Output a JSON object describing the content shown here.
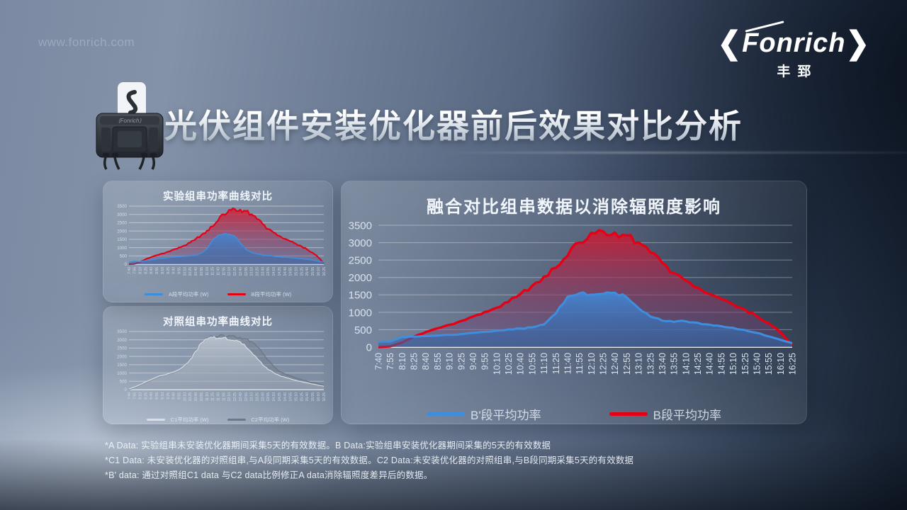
{
  "watermark": "www.fonrich.com",
  "logo": {
    "bracket_left": "❮",
    "brand": "Fonrich",
    "bracket_right": "❯",
    "cn": "丰郅"
  },
  "header": {
    "title": "光伏组件安装优化器前后效果对比分析"
  },
  "footnotes": [
    "*A Data: 实验组串未安装优化器期间采集5天的有效数据。B Data:实验组串安装优化器期间采集的5天的有效数据",
    "*C1 Data: 未安装优化器的对照组串,与A段同期采集5天的有效数据。C2 Data:未安装优化器的对照组串,与B段同期采集5天的有效数据",
    "*B' data: 通过对照组C1 data 与C2 data比例修正A data消除辐照度差异后的数据。"
  ],
  "chart_data": [
    {
      "id": "experiment",
      "type": "area",
      "title": "实验组串功率曲线对比",
      "categories": [
        "7:40",
        "7:55",
        "8:10",
        "8:25",
        "8:40",
        "8:55",
        "9:10",
        "9:25",
        "9:40",
        "9:55",
        "10:10",
        "10:25",
        "10:40",
        "10:55",
        "11:10",
        "11:25",
        "11:40",
        "11:55",
        "12:10",
        "12:25",
        "12:40",
        "12:55",
        "13:10",
        "13:25",
        "13:40",
        "13:55",
        "14:10",
        "14:25",
        "14:40",
        "14:55",
        "15:10",
        "15:25",
        "15:40",
        "15:55",
        "16:10",
        "16:25"
      ],
      "ylim": [
        0,
        3500
      ],
      "ytick_step": 500,
      "grid": true,
      "legend_position": "bottom",
      "x_label_rotation": -90,
      "series": [
        {
          "name": "A段平均功率 (W)",
          "color": "#3f8ede",
          "fill_top": "rgba(66,136,214,0.90)",
          "fill_bottom": "rgba(58,98,158,0.55)",
          "values": [
            110,
            180,
            160,
            210,
            260,
            310,
            355,
            395,
            430,
            455,
            480,
            510,
            550,
            660,
            920,
            1420,
            1760,
            1820,
            1800,
            1690,
            1280,
            900,
            710,
            620,
            560,
            515,
            480,
            450,
            425,
            400,
            375,
            345,
            300,
            250,
            185,
            120
          ]
        },
        {
          "name": "B段平均功率 (W)",
          "color": "#e60015",
          "fill_top": "rgba(216,24,46,0.82)",
          "fill_bottom": "rgba(104,76,132,0.32)",
          "values": [
            0,
            20,
            130,
            300,
            430,
            540,
            640,
            750,
            880,
            1010,
            1130,
            1300,
            1520,
            1760,
            2020,
            2280,
            2620,
            3000,
            3280,
            3330,
            3290,
            3210,
            3010,
            2720,
            2420,
            2120,
            1910,
            1710,
            1530,
            1380,
            1230,
            1070,
            890,
            690,
            420,
            60
          ]
        }
      ]
    },
    {
      "id": "control",
      "type": "area",
      "title": "对照组串功率曲线对比",
      "categories": [
        "7:40",
        "7:55",
        "8:10",
        "8:25",
        "8:40",
        "8:55",
        "9:10",
        "9:25",
        "9:40",
        "9:55",
        "10:10",
        "10:25",
        "10:40",
        "10:55",
        "11:10",
        "11:25",
        "11:40",
        "11:55",
        "12:10",
        "12:25",
        "12:40",
        "12:55",
        "13:10",
        "13:25",
        "13:40",
        "13:55",
        "14:10",
        "14:25",
        "14:40",
        "14:55",
        "15:10",
        "15:25",
        "15:40",
        "15:55",
        "16:10",
        "16:25"
      ],
      "ylim": [
        0,
        3500
      ],
      "ytick_step": 500,
      "grid": true,
      "legend_position": "bottom",
      "x_label_rotation": -90,
      "series": [
        {
          "name": "C1平均功率 (W)",
          "color": "#d9dee5",
          "fill_top": "rgba(213,220,229,0.62)",
          "fill_bottom": "rgba(188,198,211,0.28)",
          "values": [
            40,
            150,
            300,
            460,
            610,
            760,
            860,
            960,
            1060,
            1210,
            1460,
            1810,
            2310,
            2810,
            3060,
            3150,
            3100,
            3140,
            3000,
            2940,
            2880,
            2580,
            2240,
            1890,
            1500,
            1210,
            1010,
            860,
            750,
            650,
            555,
            480,
            405,
            335,
            265,
            200
          ]
        },
        {
          "name": "C2平均功率 (W)",
          "color": "#6e7988",
          "fill_top": "rgba(126,136,151,0.60)",
          "fill_bottom": "rgba(104,114,130,0.30)",
          "values": [
            0,
            100,
            250,
            410,
            560,
            710,
            810,
            910,
            1010,
            1160,
            1410,
            1760,
            2260,
            2760,
            3110,
            3210,
            3160,
            3250,
            3260,
            3210,
            3150,
            3040,
            2890,
            2590,
            2190,
            1790,
            1400,
            1110,
            950,
            820,
            705,
            605,
            505,
            425,
            345,
            255
          ]
        }
      ]
    },
    {
      "id": "fused",
      "type": "area",
      "title": "融合对比组串数据以消除辐照度影响",
      "categories": [
        "7:40",
        "7:55",
        "8:10",
        "8:25",
        "8:40",
        "8:55",
        "9:10",
        "9:25",
        "9:40",
        "9:55",
        "10:10",
        "10:25",
        "10:40",
        "10:55",
        "11:10",
        "11:25",
        "11:40",
        "11:55",
        "12:10",
        "12:25",
        "12:40",
        "12:55",
        "13:10",
        "13:25",
        "13:40",
        "13:55",
        "14:10",
        "14:25",
        "14:40",
        "14:55",
        "15:10",
        "15:25",
        "15:40",
        "15:55",
        "16:10",
        "16:25"
      ],
      "ylim": [
        0,
        3500
      ],
      "ytick_step": 500,
      "grid": true,
      "legend_position": "bottom",
      "x_label_rotation": -90,
      "series": [
        {
          "name": "B'段平均功率",
          "color": "#3f8ede",
          "fill_top": "rgba(66,136,214,0.92)",
          "fill_bottom": "rgba(54,94,156,0.58)",
          "values": [
            150,
            160,
            290,
            300,
            315,
            330,
            350,
            375,
            410,
            440,
            470,
            510,
            535,
            565,
            650,
            960,
            1450,
            1545,
            1505,
            1530,
            1560,
            1430,
            1120,
            880,
            760,
            725,
            740,
            700,
            645,
            600,
            555,
            490,
            410,
            310,
            210,
            110
          ]
        },
        {
          "name": "B段平均功率",
          "color": "#e60015",
          "fill_top": "rgba(212,22,44,0.85)",
          "fill_bottom": "rgba(96,72,130,0.30)",
          "values": [
            0,
            20,
            130,
            300,
            430,
            540,
            640,
            750,
            880,
            1010,
            1130,
            1300,
            1520,
            1760,
            2020,
            2280,
            2620,
            3000,
            3280,
            3330,
            3290,
            3210,
            3010,
            2720,
            2420,
            2120,
            1910,
            1710,
            1530,
            1380,
            1230,
            1070,
            890,
            690,
            420,
            60
          ]
        }
      ]
    }
  ]
}
